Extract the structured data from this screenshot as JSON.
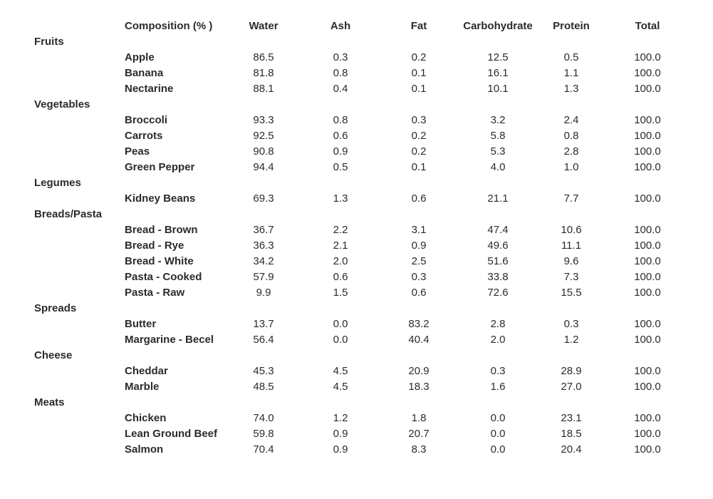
{
  "chart_data": {
    "type": "table",
    "title": "Composition (% )",
    "columns": [
      "Composition (% )",
      "Water",
      "Ash",
      "Fat",
      "Carbohydrate",
      "Protein",
      "Total"
    ],
    "header": {
      "category": "",
      "composition": "Composition (% )",
      "water": "Water",
      "ash": "Ash",
      "fat": "Fat",
      "carbohydrate": "Carbohydrate",
      "protein": "Protein",
      "total": "Total"
    },
    "sections": [
      {
        "category": "Fruits",
        "rows": [
          {
            "name": "Apple",
            "values": [
              "86.5",
              "0.3",
              "0.2",
              "12.5",
              "0.5",
              "100.0"
            ]
          },
          {
            "name": "Banana",
            "values": [
              "81.8",
              "0.8",
              "0.1",
              "16.1",
              "1.1",
              "100.0"
            ]
          },
          {
            "name": "Nectarine",
            "values": [
              "88.1",
              "0.4",
              "0.1",
              "10.1",
              "1.3",
              "100.0"
            ]
          }
        ]
      },
      {
        "category": "Vegetables",
        "rows": [
          {
            "name": "Broccoli",
            "values": [
              "93.3",
              "0.8",
              "0.3",
              "3.2",
              "2.4",
              "100.0"
            ]
          },
          {
            "name": "Carrots",
            "values": [
              "92.5",
              "0.6",
              "0.2",
              "5.8",
              "0.8",
              "100.0"
            ]
          },
          {
            "name": "Peas",
            "values": [
              "90.8",
              "0.9",
              "0.2",
              "5.3",
              "2.8",
              "100.0"
            ]
          },
          {
            "name": "Green Pepper",
            "values": [
              "94.4",
              "0.5",
              "0.1",
              "4.0",
              "1.0",
              "100.0"
            ]
          }
        ]
      },
      {
        "category": "Legumes",
        "rows": [
          {
            "name": "Kidney Beans",
            "values": [
              "69.3",
              "1.3",
              "0.6",
              "21.1",
              "7.7",
              "100.0"
            ]
          }
        ]
      },
      {
        "category": "Breads/Pasta",
        "rows": [
          {
            "name": "Bread - Brown",
            "values": [
              "36.7",
              "2.2",
              "3.1",
              "47.4",
              "10.6",
              "100.0"
            ]
          },
          {
            "name": "Bread - Rye",
            "values": [
              "36.3",
              "2.1",
              "0.9",
              "49.6",
              "11.1",
              "100.0"
            ]
          },
          {
            "name": "Bread - White",
            "values": [
              "34.2",
              "2.0",
              "2.5",
              "51.6",
              "9.6",
              "100.0"
            ]
          },
          {
            "name": "Pasta - Cooked",
            "values": [
              "57.9",
              "0.6",
              "0.3",
              "33.8",
              "7.3",
              "100.0"
            ]
          },
          {
            "name": "Pasta - Raw",
            "values": [
              "9.9",
              "1.5",
              "0.6",
              "72.6",
              "15.5",
              "100.0"
            ]
          }
        ]
      },
      {
        "category": "Spreads",
        "rows": [
          {
            "name": "Butter",
            "values": [
              "13.7",
              "0.0",
              "83.2",
              "2.8",
              "0.3",
              "100.0"
            ]
          },
          {
            "name": "Margarine - Becel",
            "values": [
              "56.4",
              "0.0",
              "40.4",
              "2.0",
              "1.2",
              "100.0"
            ]
          }
        ]
      },
      {
        "category": "Cheese",
        "rows": [
          {
            "name": "Cheddar",
            "values": [
              "45.3",
              "4.5",
              "20.9",
              "0.3",
              "28.9",
              "100.0"
            ]
          },
          {
            "name": "Marble",
            "values": [
              "48.5",
              "4.5",
              "18.3",
              "1.6",
              "27.0",
              "100.0"
            ]
          }
        ]
      },
      {
        "category": "Meats",
        "rows": [
          {
            "name": "Chicken",
            "values": [
              "74.0",
              "1.2",
              "1.8",
              "0.0",
              "23.1",
              "100.0"
            ]
          },
          {
            "name": "Lean Ground Beef",
            "values": [
              "59.8",
              "0.9",
              "20.7",
              "0.0",
              "18.5",
              "100.0"
            ]
          },
          {
            "name": "Salmon",
            "values": [
              "70.4",
              "0.9",
              "8.3",
              "0.0",
              "20.4",
              "100.0"
            ]
          }
        ]
      }
    ]
  },
  "colors": {
    "text": "#2b2b2b",
    "background": "#ffffff"
  }
}
